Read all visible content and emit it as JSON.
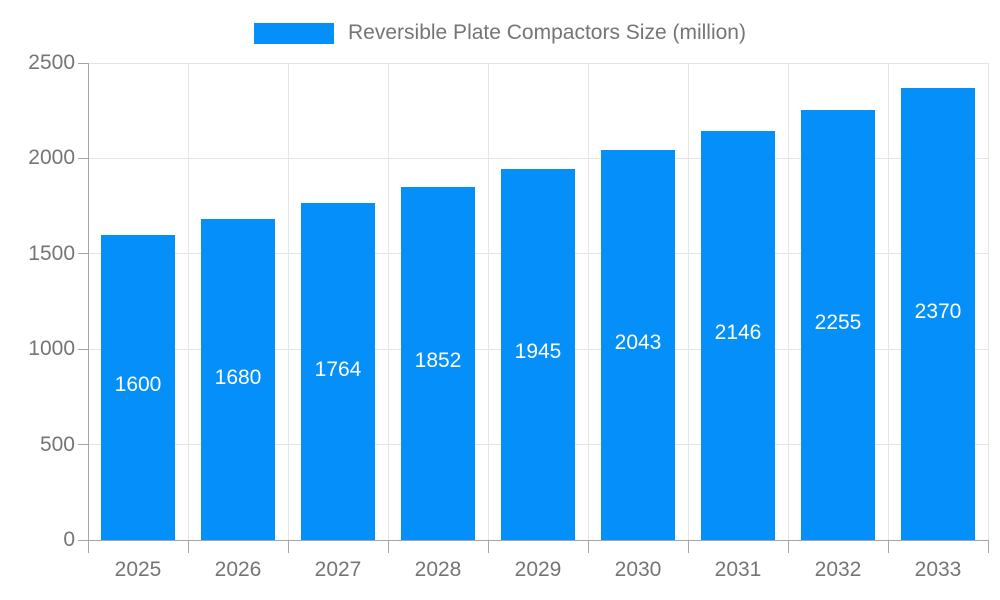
{
  "chart_data": {
    "type": "bar",
    "title": "Reversible Plate Compactors Size (million)",
    "legend_entries": [
      "Reversible Plate Compactors Size (million)"
    ],
    "legend_position": "top",
    "categories": [
      "2025",
      "2026",
      "2027",
      "2028",
      "2029",
      "2030",
      "2031",
      "2032",
      "2033"
    ],
    "series": [
      {
        "name": "Reversible Plate Compactors Size (million)",
        "values": [
          1600,
          1680,
          1764,
          1852,
          1945,
          2043,
          2146,
          2255,
          2370
        ]
      }
    ],
    "data_labels_shown": true,
    "data_label_position": "inside-center",
    "xlabel": "",
    "ylabel": "",
    "ylim": [
      0,
      2500
    ],
    "y_ticks": [
      0,
      500,
      1000,
      1500,
      2000,
      2500
    ],
    "grid": true,
    "colors": {
      "bar": "#0490f8",
      "grid_line": "#e4e4e4",
      "axis_line": "#a6a6a6",
      "tick_text": "#757575",
      "legend_text": "#757575",
      "bar_label_text": "#ffffff"
    }
  }
}
